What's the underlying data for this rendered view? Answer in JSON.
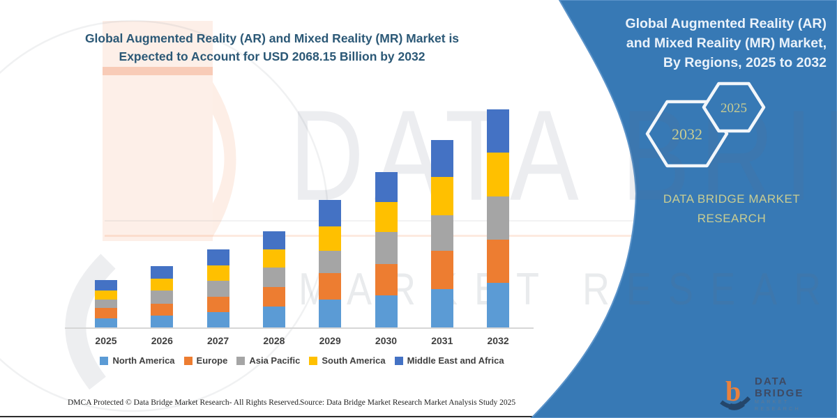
{
  "header": {
    "title_left": [
      "Global Augmented Reality (AR) and Mixed Reality (MR) Market is",
      "Expected to Account for USD 2068.15 Billion by 2032"
    ],
    "title_right": [
      "Global Augmented Reality (AR)",
      "and Mixed Reality (MR) Market,",
      "By Regions, 2025 to 2032"
    ]
  },
  "badges": {
    "left_hexagon_year": "2032",
    "right_hexagon_year": "2025"
  },
  "brand": {
    "panel_name": "DATA BRIDGE MARKET RESEARCH",
    "logo_name": "DATA BRIDGE",
    "logo_subtitle": "MARKET RESEARCH"
  },
  "watermark": {
    "line1": "DATA BRIDGE",
    "line2": "MARKET RESEARCH"
  },
  "footer": {
    "dmca": "DMCA Protected © Data Bridge Market Research-  All Rights Reserved.",
    "source": "Source: Data Bridge Market Research  Market Analysis Study 2025"
  },
  "colors": {
    "panel_blue": "#3779B5",
    "accent_khaki": "#C9CD92",
    "title_blue": "#2B5876",
    "axis_text": "#3F3F3F"
  },
  "chart_data": {
    "type": "bar",
    "stacked": true,
    "title": "Global Augmented Reality (AR) and Mixed Reality (MR) Market is Expected to Account for USD 2068.15 Billion by 2032",
    "unit": "USD billion",
    "xlabel": "",
    "ylabel": "",
    "ylim": [
      0,
      2100
    ],
    "gridlines": false,
    "legend_position": "bottom",
    "categories": [
      "2025",
      "2026",
      "2027",
      "2028",
      "2029",
      "2030",
      "2031",
      "2032"
    ],
    "series": [
      {
        "name": "North America",
        "color": "#5B9BD5",
        "values": [
          86,
          112,
          145,
          198,
          264,
          304,
          363,
          422
        ]
      },
      {
        "name": "Europe",
        "color": "#ED7D31",
        "values": [
          99,
          112,
          145,
          185,
          251,
          297,
          363,
          409
        ]
      },
      {
        "name": "Asia Pacific",
        "color": "#A5A5A5",
        "values": [
          79,
          125,
          152,
          185,
          211,
          304,
          337,
          409
        ]
      },
      {
        "name": "South America",
        "color": "#FFC000",
        "values": [
          86,
          112,
          145,
          172,
          231,
          284,
          363,
          416
        ]
      },
      {
        "name": "Middle East and Africa",
        "color": "#4472C4",
        "values": [
          99,
          119,
          152,
          172,
          251,
          284,
          350,
          412.15
        ]
      }
    ],
    "totals": [
      449,
      580,
      739,
      912,
      1208,
      1473,
      1776,
      2068.15
    ],
    "highlighted_value_2032": 2068.15
  }
}
